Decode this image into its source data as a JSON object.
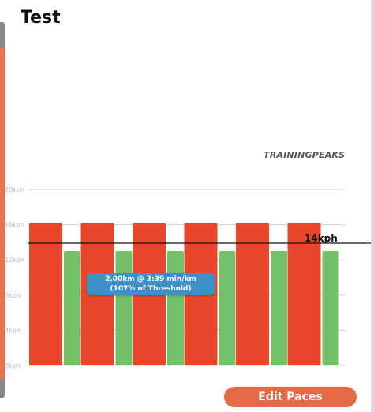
{
  "header": {
    "title": "Test"
  },
  "brand": {
    "text": "TRAININGPEAKS"
  },
  "chart_data": {
    "type": "bar",
    "ylim": [
      0,
      20
    ],
    "y_ticks": [
      {
        "value": 0,
        "label": "0kph"
      },
      {
        "value": 4,
        "label": "4kph"
      },
      {
        "value": 8,
        "label": "8kph"
      },
      {
        "value": 12,
        "label": "12kph"
      },
      {
        "value": 16,
        "label": "16kph"
      },
      {
        "value": 20,
        "label": "20kph"
      }
    ],
    "grid": true,
    "bars": [
      {
        "type": "work",
        "value": 16.2
      },
      {
        "type": "recovery",
        "value": 13.0
      },
      {
        "type": "work",
        "value": 16.2
      },
      {
        "type": "recovery",
        "value": 13.0
      },
      {
        "type": "work",
        "value": 16.2
      },
      {
        "type": "recovery",
        "value": 13.0
      },
      {
        "type": "work",
        "value": 16.2
      },
      {
        "type": "recovery",
        "value": 13.0
      },
      {
        "type": "work",
        "value": 16.2
      },
      {
        "type": "recovery",
        "value": 13.0
      },
      {
        "type": "work",
        "value": 16.2
      },
      {
        "type": "recovery",
        "value": 13.0
      }
    ],
    "reference_line": {
      "value": 13.9,
      "label": "14kph"
    },
    "colors": {
      "work": "#e8472b",
      "recovery": "#74bf6a",
      "grid": "#d6d6d6",
      "reference": "#111111"
    }
  },
  "tooltip": {
    "line1": "2.00km @ 3:39 min/km",
    "line2": "(107% of Threshold)"
  },
  "actions": {
    "edit_paces_label": "Edit Paces"
  }
}
